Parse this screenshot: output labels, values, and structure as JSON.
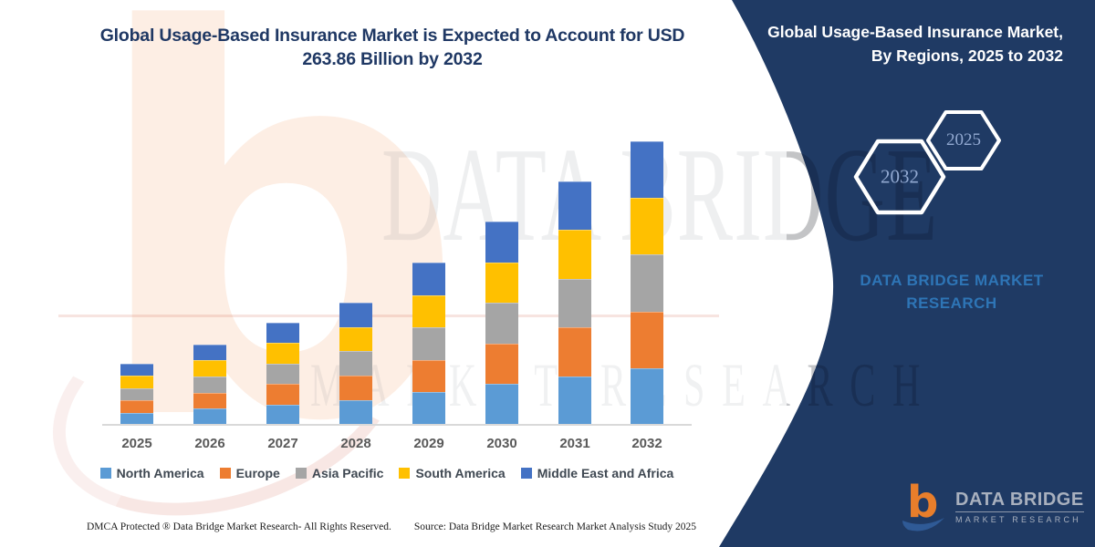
{
  "header": {
    "title_line1": "Global Usage-Based Insurance Market is Expected to Account for USD",
    "title_line2": "263.86 Billion by 2032"
  },
  "side_panel": {
    "heading_line1": "Global Usage-Based Insurance Market,",
    "heading_line2": "By Regions, 2025 to 2032",
    "hexagons": [
      {
        "label": "2032"
      },
      {
        "label": "2025"
      }
    ],
    "brand_caption": "DATA BRIDGE MARKET RESEARCH"
  },
  "watermark": {
    "letter_mark": "b",
    "row1": "DATA BRIDGE",
    "row2": "MARKET RESEARCH"
  },
  "chart_data": {
    "type": "bar",
    "stacked": true,
    "title": "Global Usage-Based Insurance Market, By Regions, 2025 to 2032",
    "unit": "USD Billion",
    "categories": [
      "2025",
      "2026",
      "2027",
      "2028",
      "2029",
      "2030",
      "2031",
      "2032"
    ],
    "series": [
      {
        "name": "North America",
        "color": "#5B9BD5",
        "values": [
          11.4,
          15.0,
          19.0,
          22.8,
          30.2,
          37.8,
          45.4,
          52.8
        ]
      },
      {
        "name": "Europe",
        "color": "#ED7D31",
        "values": [
          11.4,
          15.0,
          19.0,
          22.8,
          30.2,
          37.8,
          45.4,
          52.8
        ]
      },
      {
        "name": "Asia Pacific",
        "color": "#A5A5A5",
        "values": [
          11.4,
          15.0,
          19.0,
          22.8,
          30.2,
          37.8,
          45.4,
          52.8
        ]
      },
      {
        "name": "South America",
        "color": "#FFC000",
        "values": [
          11.4,
          15.0,
          19.0,
          22.8,
          30.2,
          37.8,
          45.4,
          52.7
        ]
      },
      {
        "name": "Middle East and Africa",
        "color": "#4472C4",
        "values": [
          11.4,
          15.0,
          19.0,
          22.8,
          30.2,
          37.8,
          45.4,
          52.7
        ]
      }
    ],
    "totals": [
      57,
      75,
      95,
      114,
      151,
      189,
      227,
      263.86
    ],
    "ylim": [
      0,
      280
    ],
    "gridlines": false,
    "legend_position": "bottom"
  },
  "logo": {
    "mark": "b",
    "name": "DATA BRIDGE",
    "subtitle": "MARKET RESEARCH"
  },
  "footer": {
    "left": "DMCA Protected ® Data Bridge Market Research-  All Rights Reserved.",
    "source": "Source: Data Bridge Market Research  Market Analysis Study 2025"
  },
  "colors": {
    "panel_navy": "#1F3A64",
    "title_blue": "#1F3864",
    "hexagon_label": "#92A9D1",
    "panel_caption": "#2E75B6",
    "axis_labels": "#595959",
    "legend_text": "#3F4852"
  }
}
